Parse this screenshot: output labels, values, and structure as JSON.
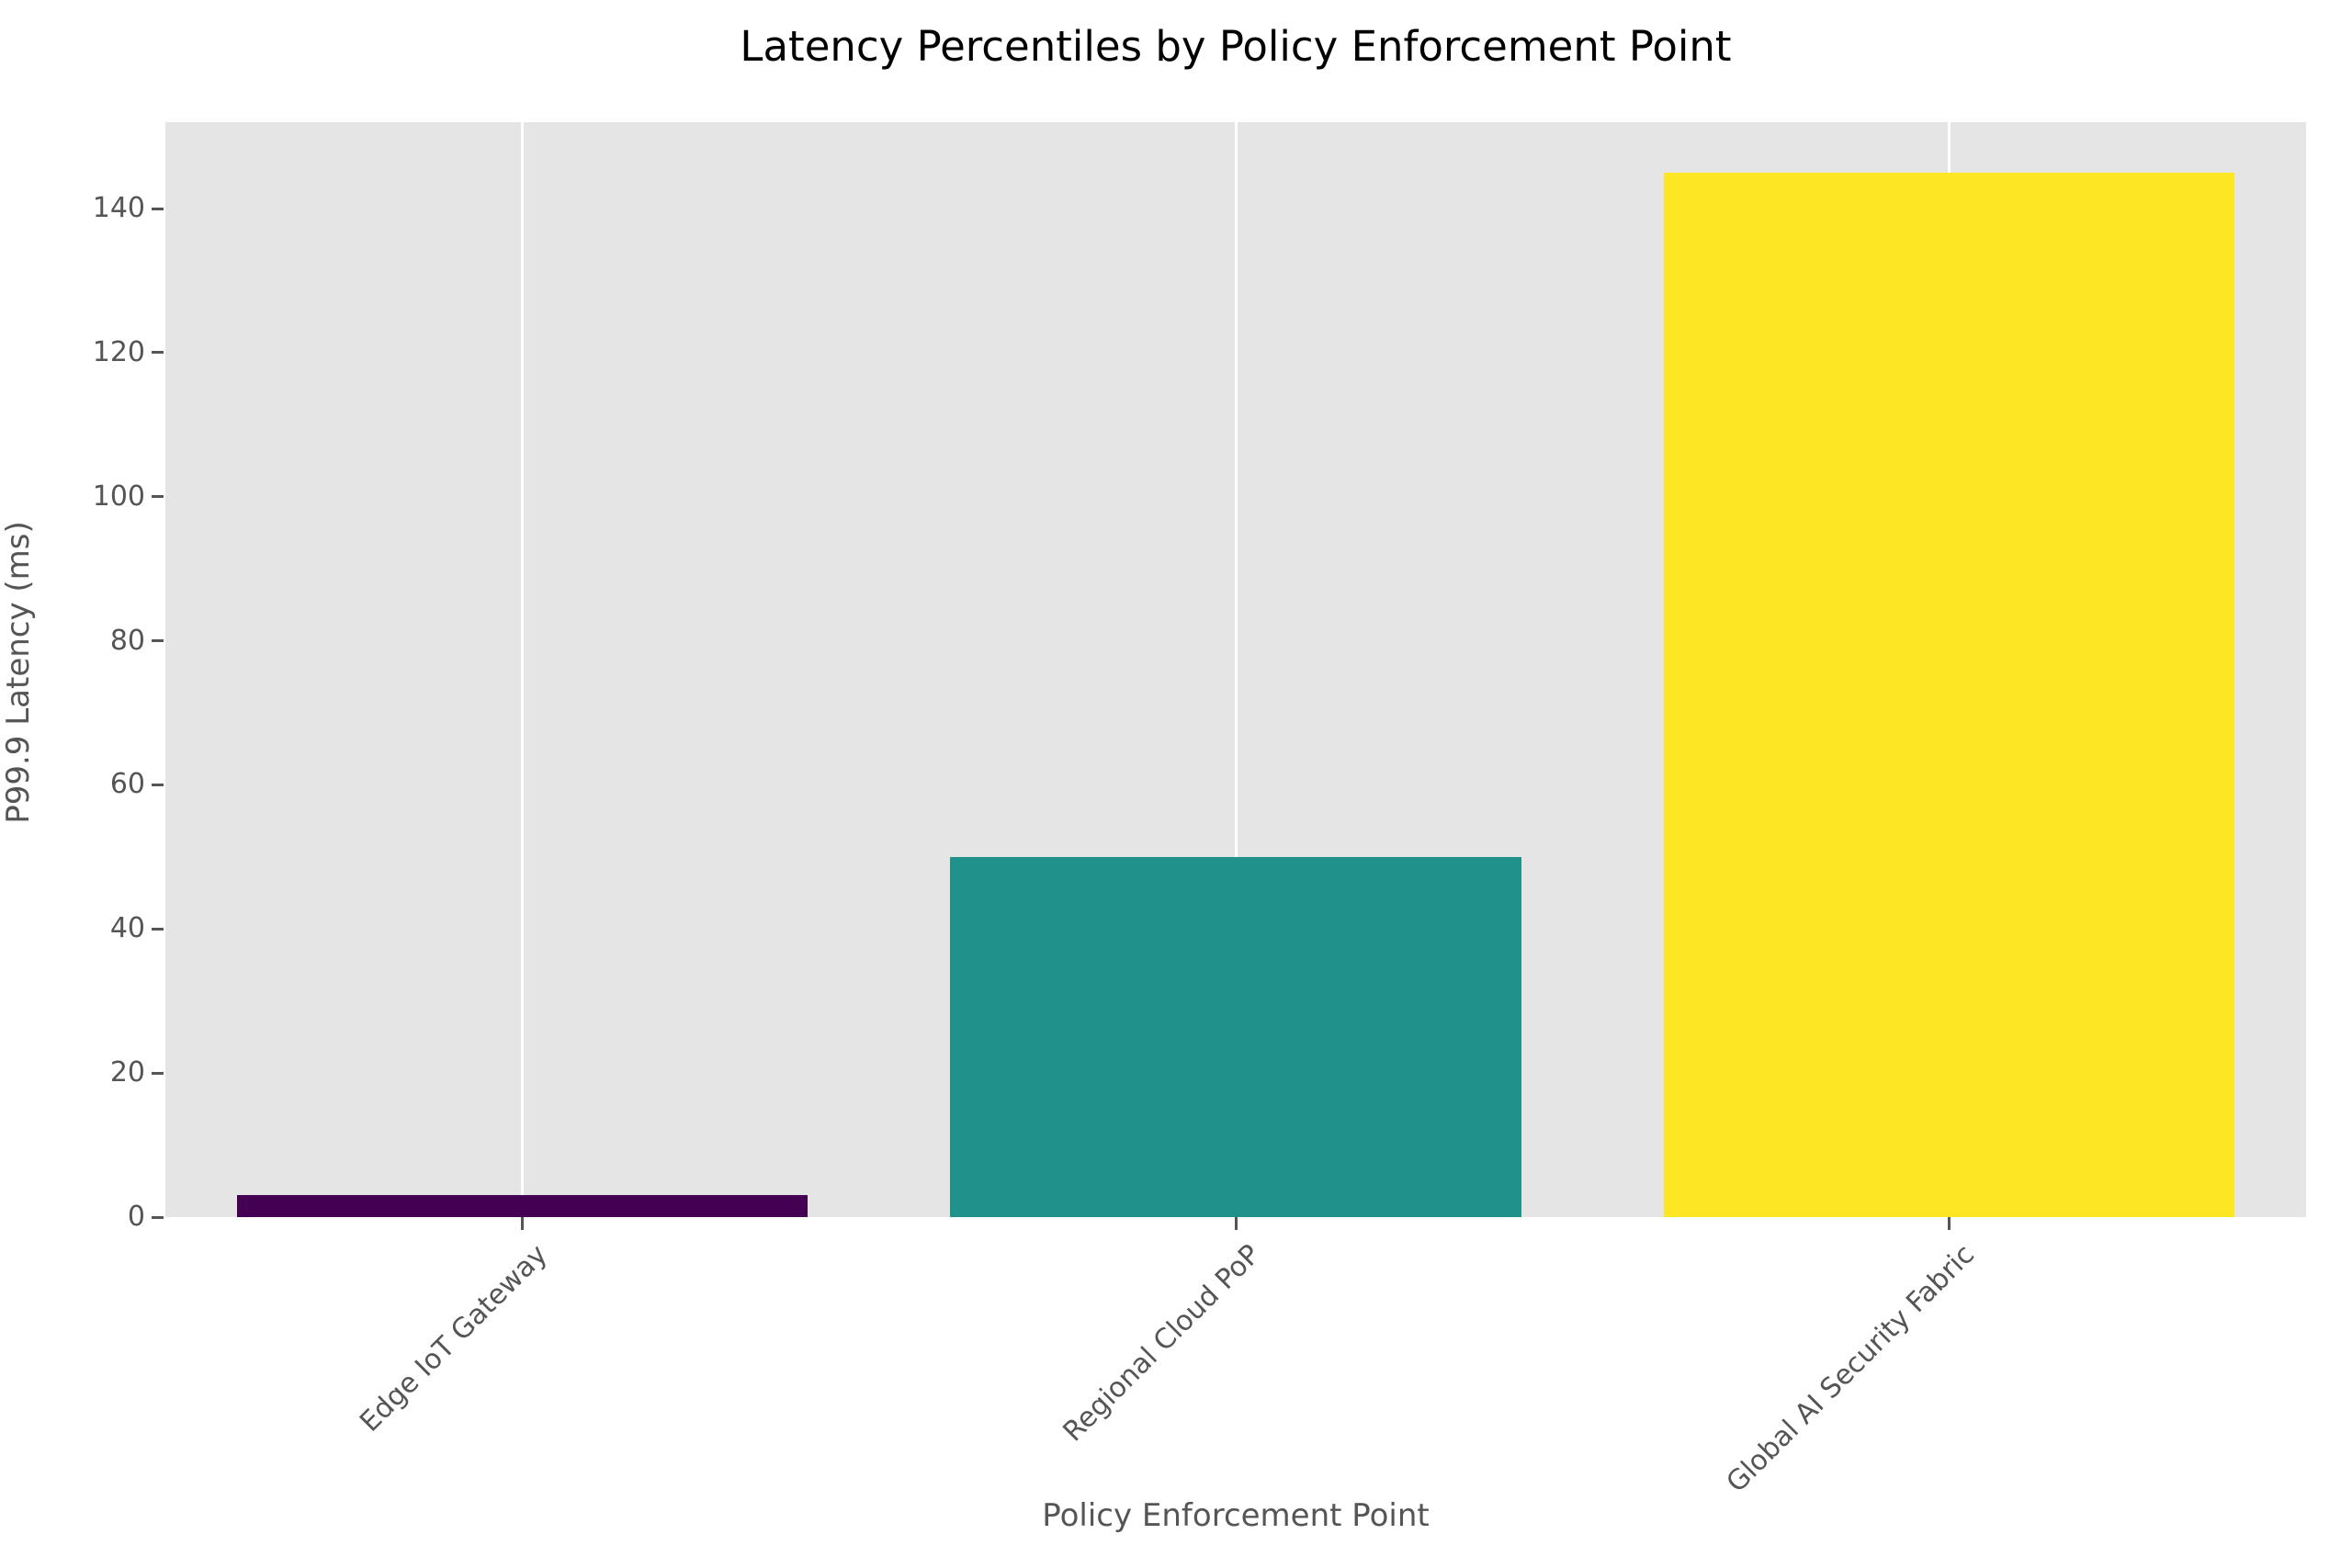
{
  "chart_data": {
    "type": "bar",
    "title": "Latency Percentiles by Policy Enforcement Point",
    "xlabel": "Policy Enforcement Point",
    "ylabel": "P99.9 Latency (ms)",
    "categories": [
      "Edge IoT Gateway",
      "Regional Cloud PoP",
      "Global AI Security Fabric"
    ],
    "values": [
      3,
      50,
      145
    ],
    "bar_colors": [
      "#440154",
      "#21918c",
      "#fde725"
    ],
    "yticks": [
      0,
      20,
      40,
      60,
      80,
      100,
      120,
      140
    ],
    "ylim": [
      0,
      152
    ],
    "bar_width_fraction": 0.8,
    "grid": "vertical-only",
    "legend_position": "none",
    "colors": {
      "plot_background": "#e5e5e5",
      "figure_background": "#ffffff",
      "gridline": "#ffffff",
      "tick_label": "#555555",
      "axis_label": "#555555",
      "title": "#000000"
    }
  }
}
